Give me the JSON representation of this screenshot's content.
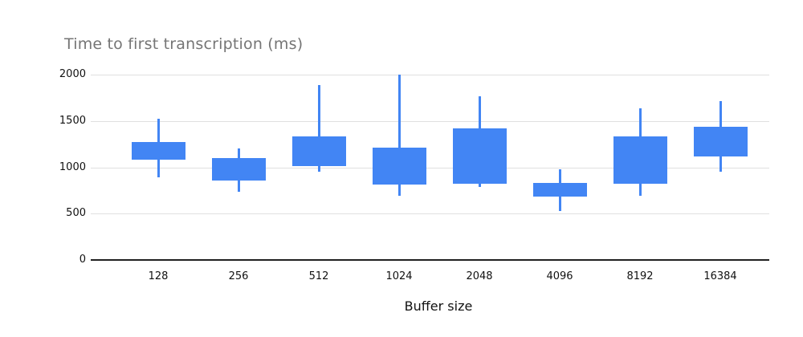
{
  "chart_data": {
    "type": "candlestick",
    "title": "Time to first transcription (ms)",
    "xlabel": "Buffer size",
    "ylabel": "",
    "categories": [
      "128",
      "256",
      "512",
      "1024",
      "2048",
      "4096",
      "8192",
      "16384"
    ],
    "series": [
      {
        "name": "Time to first transcription (ms)",
        "values": [
          {
            "low": 890,
            "open": 1080,
            "close": 1270,
            "high": 1520
          },
          {
            "low": 740,
            "open": 860,
            "close": 1100,
            "high": 1200
          },
          {
            "low": 950,
            "open": 1010,
            "close": 1330,
            "high": 1890
          },
          {
            "low": 690,
            "open": 810,
            "close": 1210,
            "high": 2000
          },
          {
            "low": 790,
            "open": 820,
            "close": 1420,
            "high": 1770
          },
          {
            "low": 530,
            "open": 680,
            "close": 830,
            "high": 980
          },
          {
            "low": 690,
            "open": 820,
            "close": 1330,
            "high": 1640
          },
          {
            "low": 950,
            "open": 1120,
            "close": 1440,
            "high": 1710
          }
        ]
      }
    ],
    "ylim": [
      0,
      2000
    ],
    "yticks": [
      0,
      500,
      1000,
      1500,
      2000
    ],
    "grid": true,
    "legend": "none",
    "colors": {
      "candle": "#4285f4",
      "gridline": "#e0e0e0",
      "axis_line": "#212121",
      "title_text": "#757575",
      "tick_text": "#111111"
    }
  }
}
